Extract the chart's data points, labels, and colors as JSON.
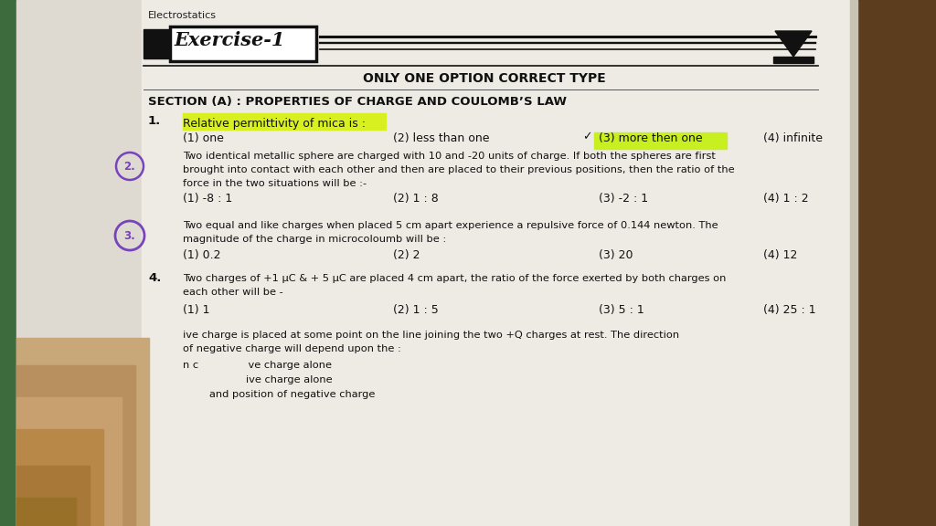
{
  "bg_color": "#5c3d1e",
  "green_strip_color": "#3d6b3d",
  "page_color": "#eeeae4",
  "page_left_color": "#dedad2",
  "header_text": "Electrostatics",
  "exercise_title": "Exercise-1",
  "section_header": "ONLY ONE OPTION CORRECT TYPE",
  "section_a": "SECTION (A) : PROPERTIES OF CHARGE AND COULOMB’S LAW",
  "q1_num": "1.",
  "q1_text": "Relative permittivity of mica is :",
  "q1_highlight_color": "#d8f020",
  "q1_opt1": "(1) one",
  "q1_opt2": "(2) less than one",
  "q1_opt3": "(3) more then one",
  "q1_opt3_highlight": "#c8f020",
  "q1_opt4": "(4) infinite",
  "q2_circle_color": "#7744bb",
  "q2_text1": "Two identical metallic sphere are charged with 10 and -20 units of charge. If both the spheres are first",
  "q2_text2": "brought into contact with each other and then are placed to their previous positions, then the ratio of the",
  "q2_text3": "force in the two situations will be :-",
  "q2_opt1": "(1) -8 : 1",
  "q2_opt2": "(2) 1 : 8",
  "q2_opt3": "(3) -2 : 1",
  "q2_opt4": "(4) 1 : 2",
  "q3_circle_color": "#7744bb",
  "q3_text1": "Two equal and like charges when placed 5 cm apart experience a repulsive force of 0.144 newton. The",
  "q3_text2": "magnitude of the charge in microcoloumb will be :",
  "q3_opt1": "(1) 0.2",
  "q3_opt2": "(2) 2",
  "q3_opt3": "(3) 20",
  "q3_opt4": "(4) 12",
  "q4_text1": "Two charges of +1 μC & + 5 μC are placed 4 cm apart, the ratio of the force exerted by both charges on",
  "q4_text2": "each other will be -",
  "q4_opt1": "(1) 1",
  "q4_opt2": "(2) 1 : 5",
  "q4_opt3": "(3) 5 : 1",
  "q4_opt4": "(4) 25 : 1",
  "q5_text1": "ive charge is placed at some point on the line joining the two +Q charges at rest. The direction",
  "q5_text2": "of negative charge will depend upon the :",
  "q5_opt1": "n c               ve charge alone",
  "q5_opt2": "                   ive charge alone",
  "q5_opt3": "        and position of negative charge"
}
